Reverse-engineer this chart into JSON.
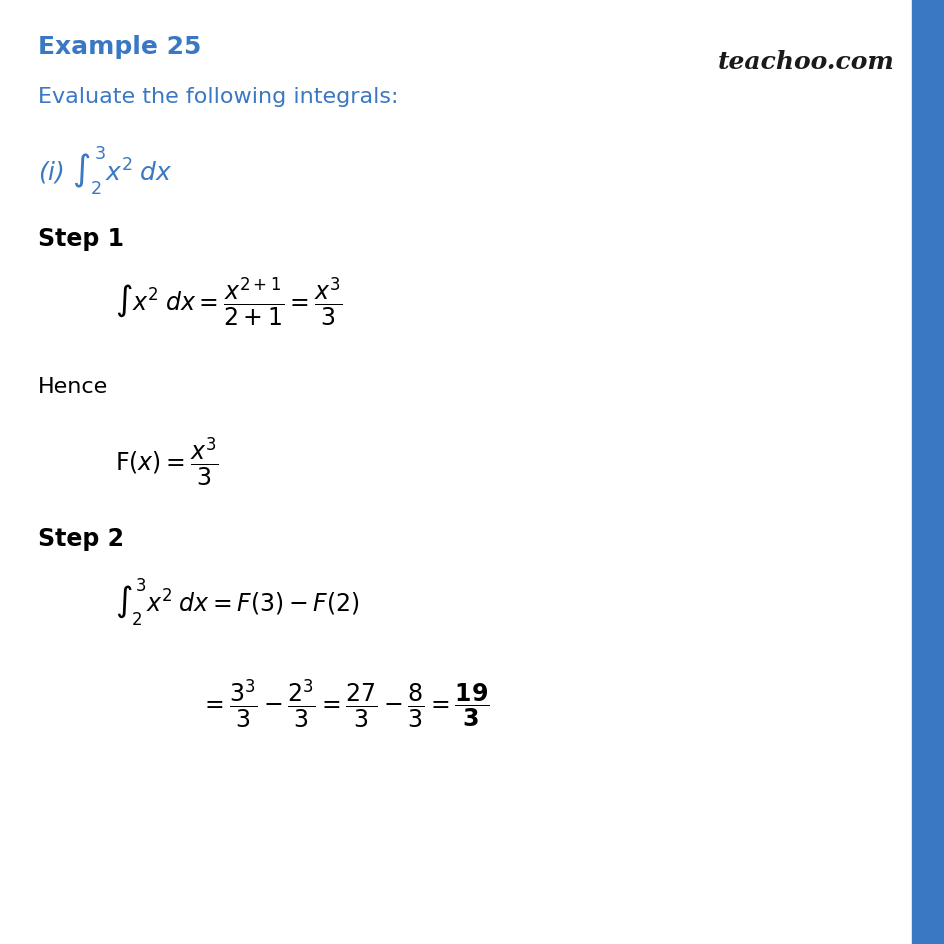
{
  "title": "Example 25",
  "subtitle": "Evaluate the following integrals:",
  "watermark": "teachoo.com",
  "bg_color": "#ffffff",
  "blue_color": "#3B78C3",
  "black_color": "#000000",
  "dark_color": "#1a1a1a",
  "right_bar_color": "#3B78C3",
  "title_fontsize": 18,
  "body_fontsize": 15,
  "math_fontsize": 15,
  "watermark_fontsize": 18
}
